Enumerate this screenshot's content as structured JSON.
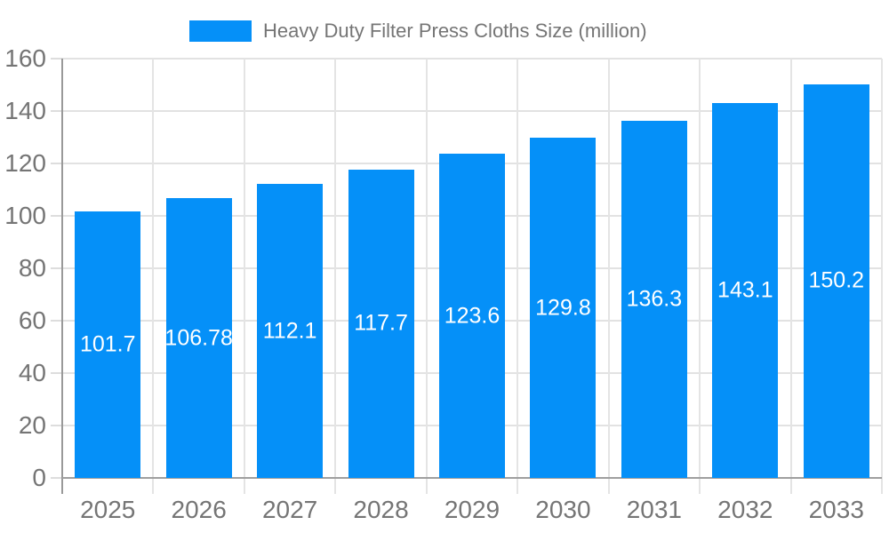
{
  "legend": {
    "label": "Heavy Duty Filter Press Cloths Size (million)",
    "swatch_color": "#0590f8"
  },
  "chart_data": {
    "type": "bar",
    "title": "Heavy Duty Filter Press Cloths Size (million)",
    "categories": [
      "2025",
      "2026",
      "2027",
      "2028",
      "2029",
      "2030",
      "2031",
      "2032",
      "2033"
    ],
    "values": [
      101.7,
      106.78,
      112.1,
      117.7,
      123.6,
      129.8,
      136.3,
      143.1,
      150.2
    ],
    "value_labels": [
      "101.7",
      "106.78",
      "112.1",
      "117.7",
      "123.6",
      "129.8",
      "136.3",
      "143.1",
      "150.2"
    ],
    "xlabel": "",
    "ylabel": "",
    "ylim": [
      0,
      160
    ],
    "yticks": [
      0,
      20,
      40,
      60,
      80,
      100,
      120,
      140,
      160
    ],
    "grid": true,
    "legend_position": "top-center",
    "bar_color": "#0590f8",
    "value_label_color": "#ffffff",
    "axis_text_color": "#757575",
    "axis_line_color": "#999999",
    "gridline_color": "#e2e2e2"
  }
}
